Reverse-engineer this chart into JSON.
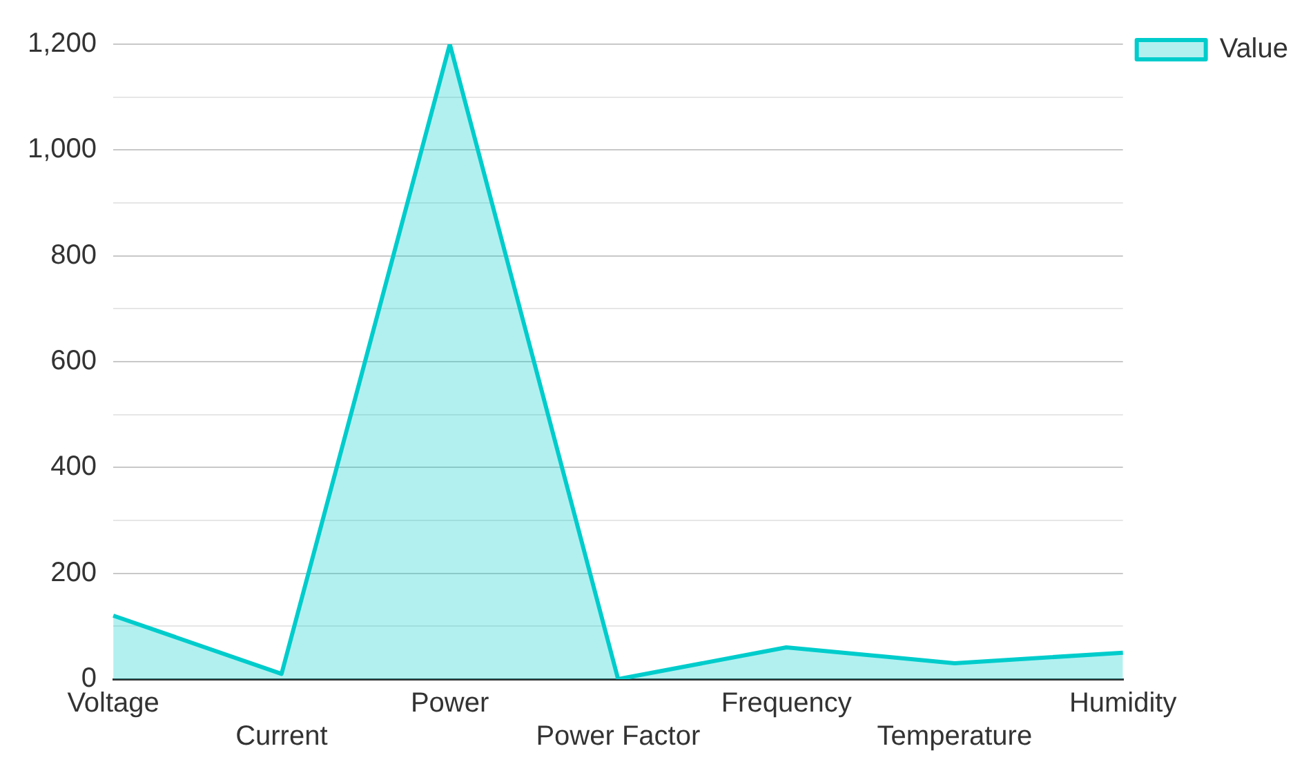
{
  "chart_data": {
    "type": "area",
    "categories": [
      "Voltage",
      "Current",
      "Power",
      "Power Factor",
      "Frequency",
      "Temperature",
      "Humidity"
    ],
    "series": [
      {
        "name": "Value",
        "color": "#00cccc",
        "values": [
          120,
          10,
          1200,
          0,
          60,
          30,
          50
        ]
      }
    ],
    "ylim": [
      0,
      1200
    ],
    "yticks": [
      0,
      {
        "value": 100,
        "label": null
      },
      200,
      {
        "value": 300,
        "label": null
      },
      400,
      {
        "value": 500,
        "label": null
      },
      600,
      {
        "value": 700,
        "label": null
      },
      800,
      {
        "value": 900,
        "label": null
      },
      {
        "value": 1000,
        "label": "1,000"
      },
      {
        "value": 1100,
        "label": null
      },
      {
        "value": 1200,
        "label": "1,200"
      }
    ],
    "grid": "y",
    "legend": "top right",
    "marker": "none"
  }
}
